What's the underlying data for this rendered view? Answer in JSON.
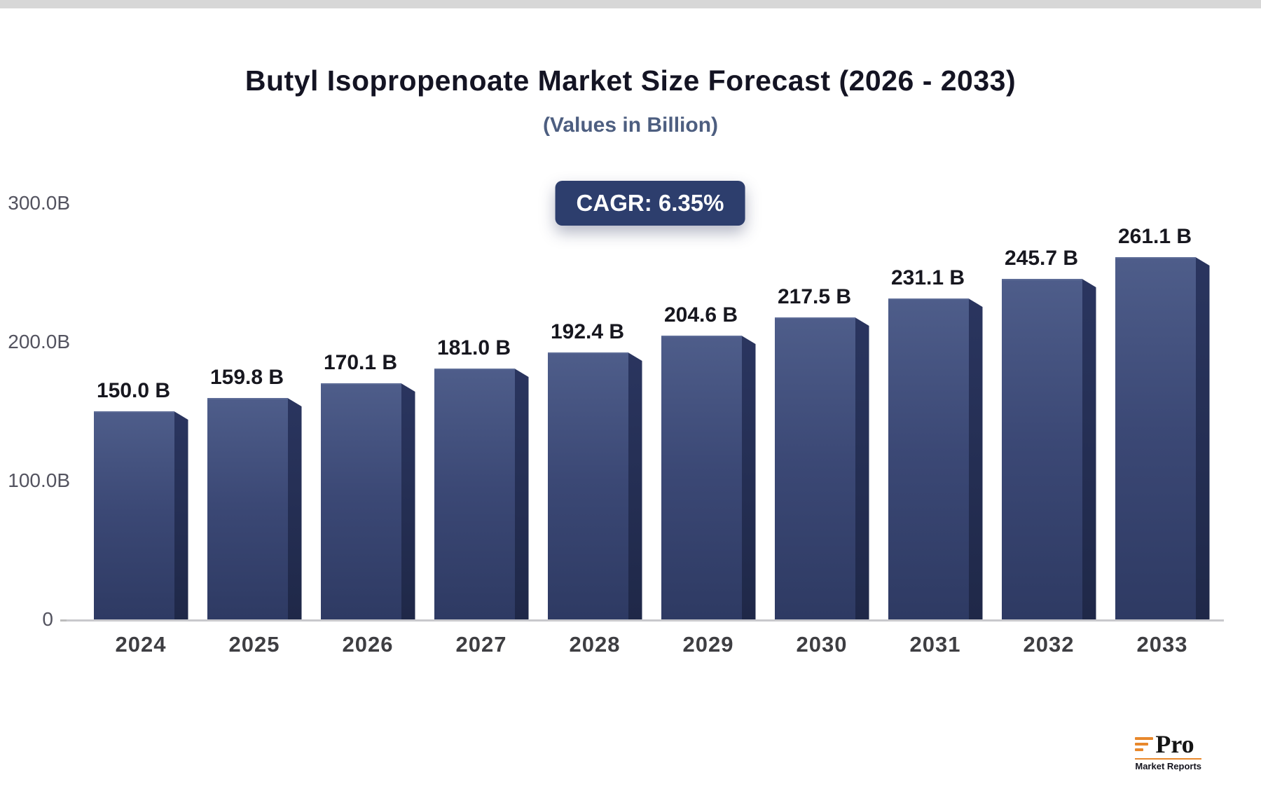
{
  "title": "Butyl Isopropenoate Market Size Forecast (2026 - 2033)",
  "subtitle": "(Values in Billion)",
  "cagr_label": "CAGR: 6.35%",
  "logo": {
    "name": "Pro",
    "tagline": "Market Reports"
  },
  "chart_data": {
    "type": "bar",
    "title": "Butyl Isopropenoate Market Size Forecast (2026 - 2033)",
    "subtitle": "(Values in Billion)",
    "categories": [
      "2024",
      "2025",
      "2026",
      "2027",
      "2028",
      "2029",
      "2030",
      "2031",
      "2032",
      "2033"
    ],
    "values": [
      150.0,
      159.8,
      170.1,
      181.0,
      192.4,
      204.6,
      217.5,
      231.1,
      245.7,
      261.1
    ],
    "value_labels": [
      "150.0 B",
      "159.8 B",
      "170.1 B",
      "181.0 B",
      "192.4 B",
      "204.6 B",
      "217.5 B",
      "231.1 B",
      "245.7 B",
      "261.1 B"
    ],
    "cagr": "6.35%",
    "xlabel": "",
    "ylabel": "",
    "ylim": [
      0,
      300
    ],
    "yticks": [
      "300.0B",
      "200.0B",
      "100.0B",
      "0"
    ],
    "ytick_values": [
      300,
      200,
      100,
      0
    ],
    "grid": false,
    "legend": false,
    "colors": {
      "bar_top": "#4e5d8a",
      "bar_bottom": "#2e3a63",
      "bar_side": "#1f2848",
      "badge_bg": "#2d3e6d",
      "badge_text": "#ffffff",
      "title_text": "#141423",
      "subtitle_text": "#4d5e80",
      "logo_accent": "#e8882c"
    }
  }
}
